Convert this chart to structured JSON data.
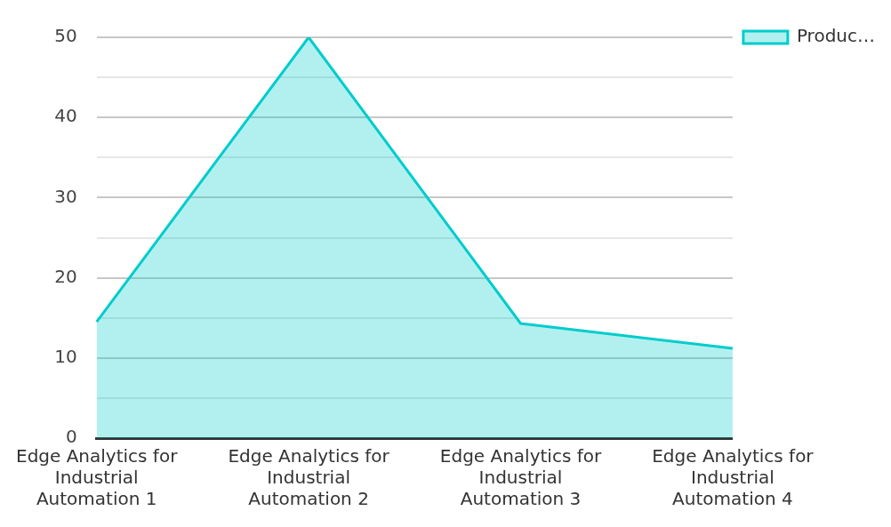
{
  "chart_data": {
    "type": "area",
    "categories": [
      "Edge Analytics for Industrial Automation 1",
      "Edge Analytics for Industrial Automation 2",
      "Edge Analytics for Industrial Automation 3",
      "Edge Analytics for Industrial Automation 4"
    ],
    "series": [
      {
        "name": "Produc…",
        "color": "#00cccc",
        "values": [
          14.5,
          50,
          14.3,
          11.2
        ]
      }
    ],
    "ylim": [
      0,
      50
    ],
    "yticks": [
      0,
      {
        "value": 5,
        "label": null
      },
      10,
      {
        "value": 15,
        "label": null
      },
      20,
      {
        "value": 25,
        "label": null
      },
      30,
      {
        "value": 35,
        "label": null
      },
      40,
      {
        "value": 45,
        "label": null
      },
      50
    ],
    "grid": "y",
    "legend": "top right",
    "marker": "none"
  }
}
